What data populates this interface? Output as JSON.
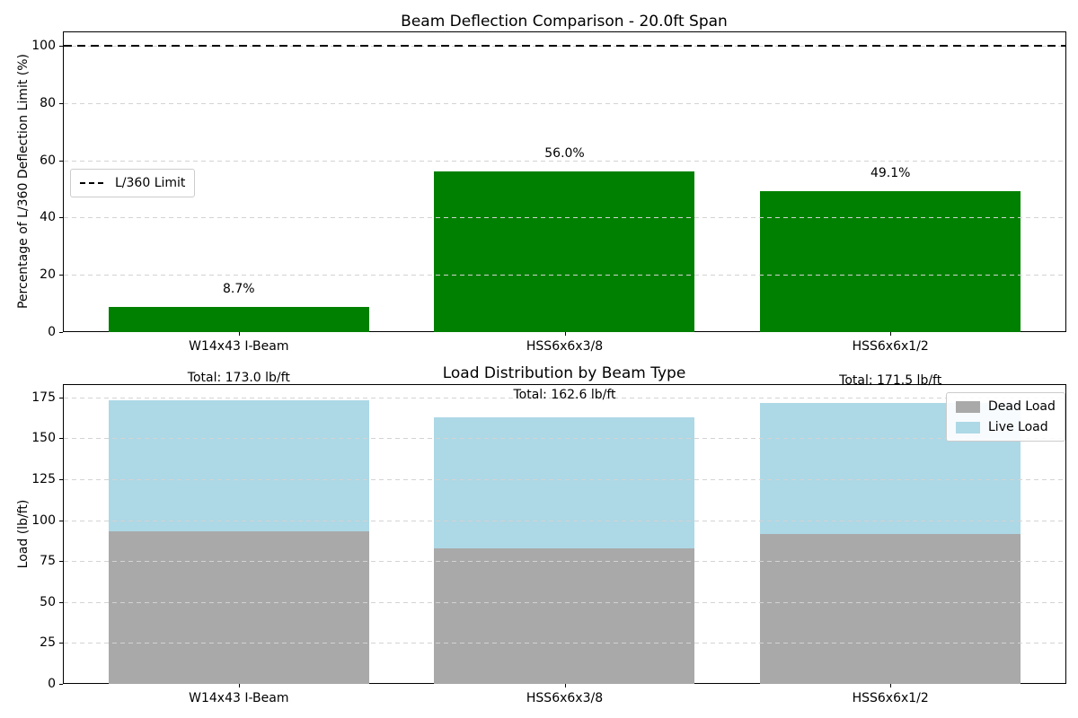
{
  "chart_data": [
    {
      "type": "bar",
      "title": "Beam Deflection Comparison - 20.0ft Span",
      "ylabel": "Percentage of L/360 Deflection Limit (%)",
      "xlabel": "",
      "categories": [
        "W14x43 I-Beam",
        "HSS6x6x3/8",
        "HSS6x6x1/2"
      ],
      "values": [
        8.7,
        56.0,
        49.1
      ],
      "bar_labels": [
        "8.7%",
        "56.0%",
        "49.1%"
      ],
      "bar_color": "#008000",
      "yticks": [
        0,
        20,
        40,
        60,
        80,
        100
      ],
      "ylim": [
        0,
        105
      ],
      "grid": true,
      "ref_line": {
        "value": 100,
        "color": "#000000",
        "style": "dashed"
      },
      "legend_label": "L/360 Limit",
      "legend_position": "center left"
    },
    {
      "type": "stacked-bar",
      "title": "Load Distribution by Beam Type",
      "ylabel": "Load (lb/ft)",
      "xlabel": "",
      "categories": [
        "W14x43 I-Beam",
        "HSS6x6x3/8",
        "HSS6x6x1/2"
      ],
      "series": [
        {
          "name": "Dead Load",
          "color": "#a9a9a9",
          "values": [
            93.0,
            82.6,
            91.5
          ]
        },
        {
          "name": "Live Load",
          "color": "#add8e6",
          "values": [
            80.0,
            80.0,
            80.0
          ]
        }
      ],
      "totals": [
        173.0,
        162.6,
        171.5
      ],
      "total_labels": [
        "Total: 173.0 lb/ft",
        "Total: 162.6 lb/ft",
        "Total: 171.5 lb/ft"
      ],
      "yticks": [
        0,
        25,
        50,
        75,
        100,
        125,
        150,
        175
      ],
      "ylim": [
        0,
        183
      ],
      "grid": true,
      "legend_position": "upper right",
      "grid_color": "#d3d3d3"
    }
  ]
}
